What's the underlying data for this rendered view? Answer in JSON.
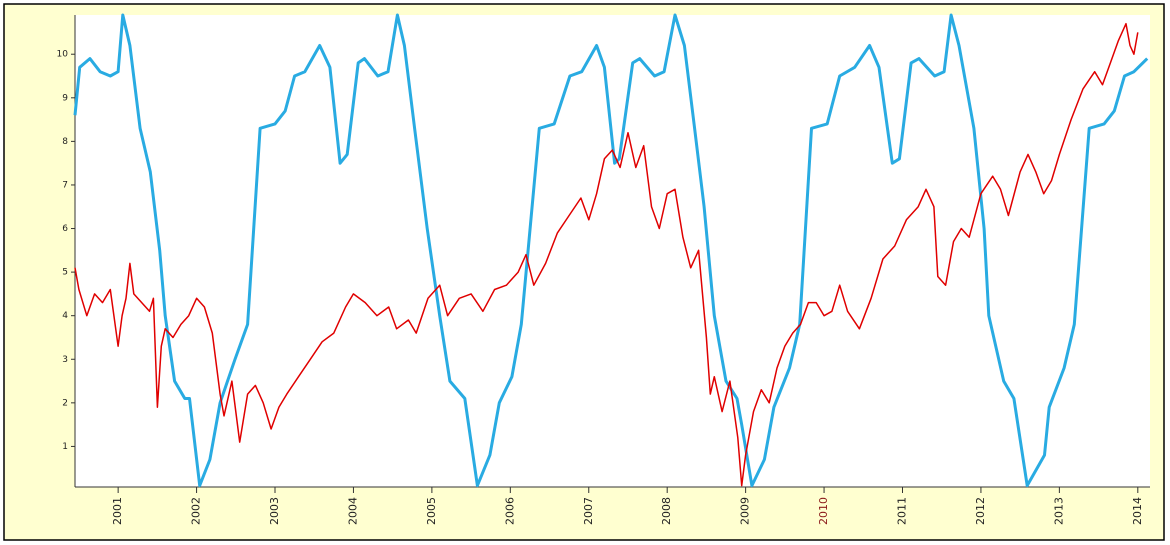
{
  "chart_data": {
    "type": "line",
    "xlim": [
      2000.45,
      2014.13
    ],
    "xticks": [
      2001,
      2002,
      2003,
      2004,
      2005,
      2006,
      2007,
      2008,
      2009,
      2010,
      2011,
      2012,
      2013,
      2014
    ],
    "xtick_label_colors": [
      "#222222",
      "#222222",
      "#222222",
      "#222222",
      "#222222",
      "#222222",
      "#222222",
      "#222222",
      "#222222",
      "#8b1a1a",
      "#222222",
      "#222222",
      "#222222",
      "#222222"
    ],
    "ylim": [
      0,
      10.9
    ],
    "yticks": [
      1,
      2,
      3,
      4,
      5,
      6,
      7,
      8,
      9,
      10
    ],
    "grid": false,
    "series": [
      {
        "color": "#29abe2",
        "x": [
          2000.45,
          2000.51,
          2000.64,
          2000.77,
          2000.9,
          2001.0,
          2001.06,
          2001.15,
          2001.28,
          2001.41,
          2001.53,
          2001.6,
          2001.72,
          2001.85,
          2001.91,
          2002.04,
          2002.17,
          2002.3,
          2002.49,
          2002.65,
          2002.81,
          2003.0,
          2003.13,
          2003.25,
          2003.38,
          2003.57,
          2003.7,
          2003.83,
          2003.92,
          2004.06,
          2004.14,
          2004.31,
          2004.44,
          2004.56,
          2004.65,
          2004.78,
          2004.94,
          2005.1,
          2005.23,
          2005.42,
          2005.58,
          2005.74,
          2005.86,
          2006.02,
          2006.14,
          2006.37,
          2006.56,
          2006.76,
          2006.91,
          2007.1,
          2007.2,
          2007.33,
          2007.39,
          2007.56,
          2007.65,
          2007.84,
          2007.96,
          2008.1,
          2008.22,
          2008.35,
          2008.47,
          2008.6,
          2008.75,
          2008.89,
          2008.95,
          2009.08,
          2009.24,
          2009.36,
          2009.56,
          2009.69,
          2009.84,
          2010.04,
          2010.2,
          2010.39,
          2010.58,
          2010.7,
          2010.87,
          2010.96,
          2011.11,
          2011.21,
          2011.41,
          2011.53,
          2011.62,
          2011.72,
          2011.91,
          2012.04,
          2012.1,
          2012.29,
          2012.42,
          2012.59,
          2012.81,
          2012.87,
          2013.06,
          2013.19,
          2013.38,
          2013.57,
          2013.7,
          2013.83,
          2013.95,
          2014.12
        ],
        "values": [
          8.6,
          9.7,
          9.9,
          9.6,
          9.5,
          9.6,
          10.9,
          10.2,
          8.3,
          7.3,
          5.5,
          4.0,
          2.5,
          2.1,
          2.1,
          0.1,
          0.7,
          2.0,
          3.0,
          3.8,
          8.3,
          8.4,
          8.7,
          9.5,
          9.6,
          10.2,
          9.7,
          7.5,
          7.7,
          9.8,
          9.9,
          9.5,
          9.6,
          10.9,
          10.2,
          8.3,
          6.0,
          4.0,
          2.5,
          2.1,
          0.1,
          0.8,
          2.0,
          2.6,
          3.8,
          8.3,
          8.4,
          9.5,
          9.6,
          10.2,
          9.7,
          7.5,
          7.6,
          9.8,
          9.9,
          9.5,
          9.6,
          10.9,
          10.2,
          8.3,
          6.5,
          4.0,
          2.5,
          2.1,
          1.5,
          0.1,
          0.7,
          1.9,
          2.8,
          3.8,
          8.3,
          8.4,
          9.5,
          9.7,
          10.2,
          9.7,
          7.5,
          7.6,
          9.8,
          9.9,
          9.5,
          9.6,
          10.9,
          10.2,
          8.3,
          6.0,
          4.0,
          2.5,
          2.1,
          0.1,
          0.8,
          1.9,
          2.8,
          3.8,
          8.3,
          8.4,
          8.7,
          9.5,
          9.6,
          9.9
        ]
      },
      {
        "color": "#e00000",
        "x": [
          2000.45,
          2000.5,
          2000.6,
          2000.7,
          2000.8,
          2000.9,
          2001.0,
          2001.05,
          2001.1,
          2001.15,
          2001.2,
          2001.3,
          2001.4,
          2001.45,
          2001.5,
          2001.55,
          2001.6,
          2001.7,
          2001.8,
          2001.9,
          2002.0,
          2002.1,
          2002.2,
          2002.3,
          2002.35,
          2002.45,
          2002.55,
          2002.65,
          2002.75,
          2002.85,
          2002.95,
          2003.05,
          2003.15,
          2003.3,
          2003.45,
          2003.6,
          2003.75,
          2003.9,
          2004.0,
          2004.15,
          2004.3,
          2004.45,
          2004.55,
          2004.7,
          2004.8,
          2004.95,
          2005.1,
          2005.2,
          2005.35,
          2005.5,
          2005.65,
          2005.8,
          2005.95,
          2006.1,
          2006.2,
          2006.3,
          2006.45,
          2006.6,
          2006.75,
          2006.9,
          2007.0,
          2007.1,
          2007.2,
          2007.3,
          2007.4,
          2007.5,
          2007.6,
          2007.7,
          2007.8,
          2007.9,
          2008.0,
          2008.1,
          2008.2,
          2008.3,
          2008.4,
          2008.5,
          2008.55,
          2008.6,
          2008.7,
          2008.8,
          2008.9,
          2008.95,
          2009.0,
          2009.1,
          2009.2,
          2009.3,
          2009.4,
          2009.5,
          2009.6,
          2009.7,
          2009.8,
          2009.9,
          2010.0,
          2010.1,
          2010.2,
          2010.3,
          2010.45,
          2010.6,
          2010.75,
          2010.9,
          2011.05,
          2011.2,
          2011.3,
          2011.4,
          2011.45,
          2011.55,
          2011.65,
          2011.75,
          2011.85,
          2012.0,
          2012.15,
          2012.25,
          2012.35,
          2012.5,
          2012.6,
          2012.7,
          2012.8,
          2012.9,
          2013.0,
          2013.15,
          2013.3,
          2013.45,
          2013.55,
          2013.65,
          2013.75,
          2013.85,
          2013.9,
          2013.95,
          2014.0
        ],
        "values": [
          5.1,
          4.6,
          4.0,
          4.5,
          4.3,
          4.6,
          3.3,
          4.0,
          4.4,
          5.2,
          4.5,
          4.3,
          4.1,
          4.4,
          1.9,
          3.3,
          3.7,
          3.5,
          3.8,
          4.0,
          4.4,
          4.2,
          3.6,
          2.2,
          1.7,
          2.5,
          1.1,
          2.2,
          2.4,
          2.0,
          1.4,
          1.9,
          2.2,
          2.6,
          3.0,
          3.4,
          3.6,
          4.2,
          4.5,
          4.3,
          4.0,
          4.2,
          3.7,
          3.9,
          3.6,
          4.4,
          4.7,
          4.0,
          4.4,
          4.5,
          4.1,
          4.6,
          4.7,
          5.0,
          5.4,
          4.7,
          5.2,
          5.9,
          6.3,
          6.7,
          6.2,
          6.8,
          7.6,
          7.8,
          7.4,
          8.2,
          7.4,
          7.9,
          6.5,
          6.0,
          6.8,
          6.9,
          5.8,
          5.1,
          5.5,
          3.5,
          2.2,
          2.6,
          1.8,
          2.5,
          1.2,
          0.1,
          0.8,
          1.8,
          2.3,
          2.0,
          2.8,
          3.3,
          3.6,
          3.8,
          4.3,
          4.3,
          4.0,
          4.1,
          4.7,
          4.1,
          3.7,
          4.4,
          5.3,
          5.6,
          6.2,
          6.5,
          6.9,
          6.5,
          4.9,
          4.7,
          5.7,
          6.0,
          5.8,
          6.8,
          7.2,
          6.9,
          6.3,
          7.3,
          7.7,
          7.3,
          6.8,
          7.1,
          7.7,
          8.5,
          9.2,
          9.6,
          9.3,
          9.8,
          10.3,
          10.7,
          10.2,
          10.0,
          10.5
        ]
      }
    ]
  }
}
